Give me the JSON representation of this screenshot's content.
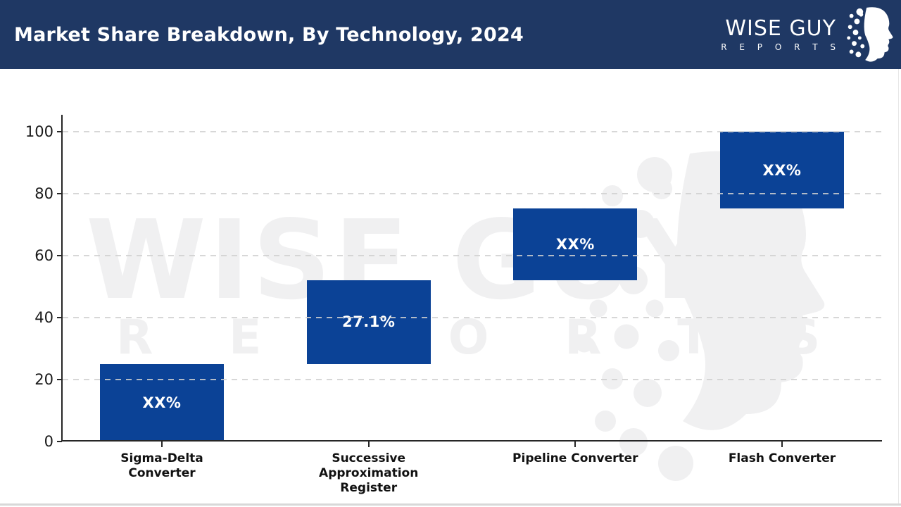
{
  "header": {
    "title": "Market Share Breakdown, By Technology, 2024",
    "logo": {
      "line1": "WISE GUY",
      "line2": "R E P O R T S"
    }
  },
  "watermark": {
    "line1": "WISE GUY",
    "line2": "R E P O R T S"
  },
  "chart_data": {
    "type": "bar",
    "subtype": "waterfall",
    "title": "Market Share Breakdown, By Technology, 2024",
    "categories": [
      "Sigma-Delta Converter",
      "Successive Approximation Register",
      "Pipeline Converter",
      "Flash Converter"
    ],
    "category_lines": [
      [
        "Sigma-Delta",
        "Converter"
      ],
      [
        "Successive",
        "Approximation",
        "Register"
      ],
      [
        "Pipeline Converter"
      ],
      [
        "Flash Converter"
      ]
    ],
    "segments": [
      {
        "category": "Sigma-Delta Converter",
        "start": 0,
        "end": 25,
        "label": "XX%"
      },
      {
        "category": "Successive Approximation Register",
        "start": 25,
        "end": 52.1,
        "value": 27.1,
        "label": "27.1%"
      },
      {
        "category": "Pipeline Converter",
        "start": 52.1,
        "end": 75.2,
        "label": "XX%"
      },
      {
        "category": "Flash Converter",
        "start": 75.2,
        "end": 100,
        "label": "XX%"
      }
    ],
    "ylim": [
      0,
      100
    ],
    "yticks": [
      0,
      20,
      40,
      60,
      80,
      100
    ],
    "xlabel": "",
    "ylabel": "",
    "legend": "none",
    "grid": "horizontal-dashed-above-bars",
    "colors": {
      "bar": "#0b4296",
      "bar_label": "#ffffff",
      "axis": "#262626",
      "grid": "#d8d8d8",
      "header_bg": "#1f3864",
      "watermark": "#f0f0f1"
    }
  }
}
